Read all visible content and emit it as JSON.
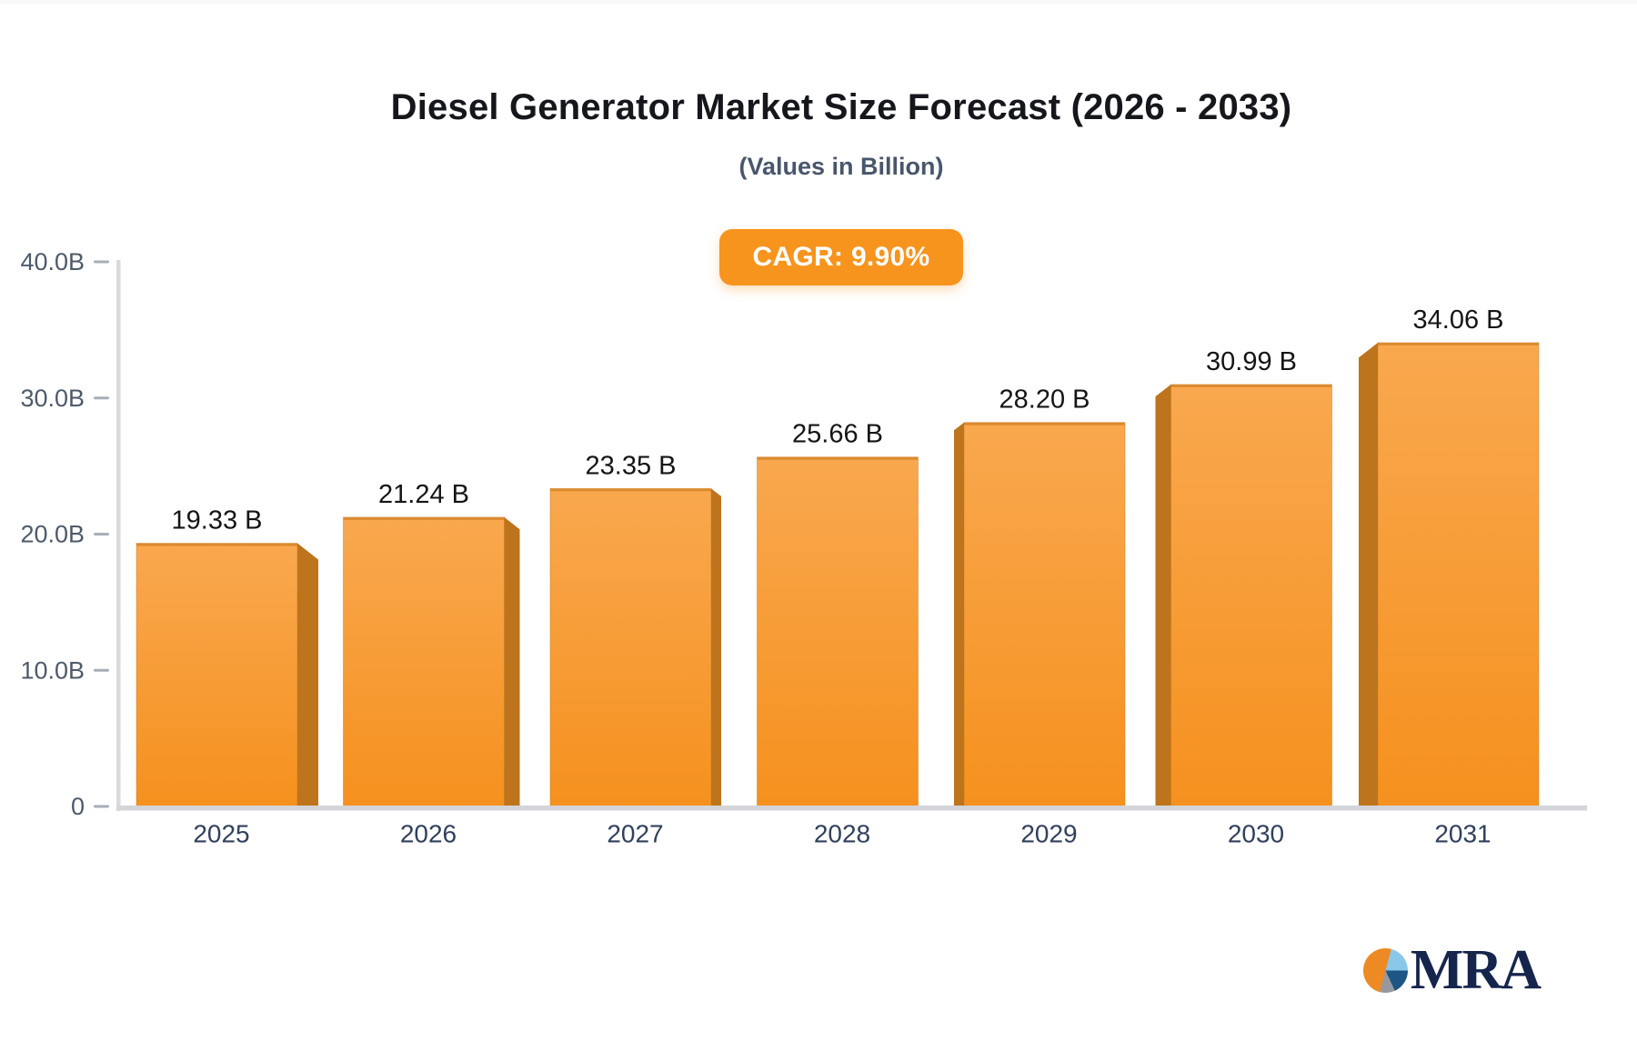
{
  "page": {
    "top_strip_color": "#F8F9FB"
  },
  "footer": {
    "brand": "MRA"
  },
  "chart_data": {
    "type": "bar",
    "title": "Diesel Generator Market Size Forecast (2026 - 2033)",
    "subtitle": "(Values in Billion)",
    "cagr_label": "CAGR: 9.90%",
    "categories": [
      "2025",
      "2026",
      "2027",
      "2028",
      "2029",
      "2030",
      "2031"
    ],
    "values": [
      19.33,
      21.24,
      23.35,
      25.66,
      28.2,
      30.99,
      34.06
    ],
    "value_labels": [
      "19.33 B",
      "21.24 B",
      "23.35 B",
      "25.66 B",
      "28.20 B",
      "30.99 B",
      "34.06 B"
    ],
    "yticks": [
      {
        "value": 40,
        "label": "40.0B"
      },
      {
        "value": 30,
        "label": "30.0B"
      },
      {
        "value": 20,
        "label": "20.0B"
      },
      {
        "value": 10,
        "label": "10.0B"
      },
      {
        "value": 0,
        "label": "0"
      }
    ],
    "ylim": [
      0,
      40
    ],
    "grid": false,
    "legend": false,
    "colors": {
      "bar_top": "#F9A84F",
      "bar_bottom": "#F5911E",
      "bar_top_edge": "#D8872B",
      "bar_side": "#BE741C",
      "axis_line": "#D9DADE",
      "baseline": "#D3D5D9",
      "tick_dash": "#A8AEB8",
      "ytick_text": "#4E5A6A",
      "xtick_text": "#31405C",
      "value_text": "#151515",
      "accent": "#F7941E"
    }
  }
}
